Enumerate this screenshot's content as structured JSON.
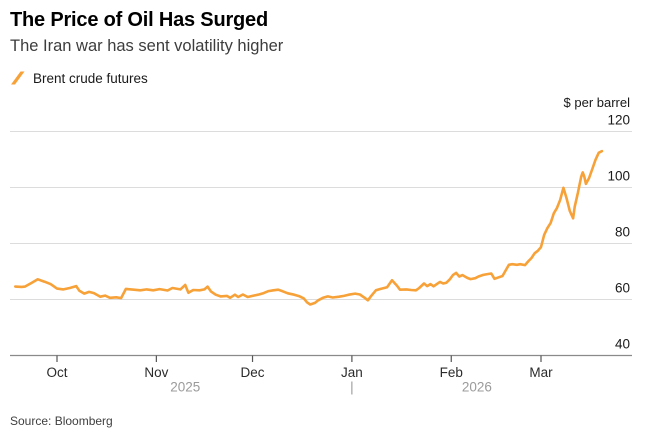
{
  "header": {
    "title": "The Price of Oil Has Surged",
    "subtitle": "The Iran war has sent volatility higher"
  },
  "legend": {
    "label": "Brent crude futures",
    "marker": "orange-slash"
  },
  "source": "Source: Bloomberg",
  "colors": {
    "series_orange": "#F7A139",
    "gridline": "#DCDCDC",
    "axis_line": "#8A8A8A",
    "tick_mark": "#555555",
    "tick_label": "#1a1a1a",
    "year_label": "#9b9b9b"
  },
  "chart_data": {
    "type": "line",
    "title": "The Price of Oil Has Surged",
    "subtitle": "The Iran war has sent volatility higher",
    "ylabel": "$ per barrel",
    "unit_label": "$ per barrel",
    "ylim": [
      40,
      120
    ],
    "yticks": [
      120,
      100,
      80,
      60,
      40
    ],
    "grid": "horizontal",
    "legend_position": "top-left",
    "x_axis": {
      "note": "day 0 = approx 2025-09-18, day 183 = approx 2026-03-20",
      "total_days": 183,
      "ticks": [
        {
          "label": "Oct",
          "day": 13
        },
        {
          "label": "Nov",
          "day": 44
        },
        {
          "label": "Dec",
          "day": 74
        },
        {
          "label": "Jan",
          "day": 105
        },
        {
          "label": "Feb",
          "day": 136
        },
        {
          "label": "Mar",
          "day": 164
        }
      ],
      "year_labels": [
        {
          "label": "2025",
          "day": 53
        },
        {
          "label": "2026",
          "day": 144
        }
      ],
      "year_divider": {
        "label": "|",
        "day": 105
      }
    },
    "series": [
      {
        "name": "Brent crude futures",
        "color": "#F7A139",
        "points": [
          [
            0,
            64.6
          ],
          [
            2,
            64.5
          ],
          [
            3,
            64.6
          ],
          [
            5,
            65.9
          ],
          [
            7,
            67.2
          ],
          [
            9,
            66.4
          ],
          [
            11,
            65.5
          ],
          [
            13,
            63.9
          ],
          [
            15,
            63.6
          ],
          [
            17,
            64.1
          ],
          [
            19,
            64.8
          ],
          [
            20,
            63.1
          ],
          [
            21.5,
            62.1
          ],
          [
            23,
            62.7
          ],
          [
            24.5,
            62.3
          ],
          [
            26.5,
            61.0
          ],
          [
            28,
            61.4
          ],
          [
            29.5,
            60.6
          ],
          [
            31.5,
            60.8
          ],
          [
            33,
            60.5
          ],
          [
            34.5,
            63.8
          ],
          [
            37,
            63.5
          ],
          [
            39,
            63.3
          ],
          [
            41,
            63.6
          ],
          [
            43,
            63.3
          ],
          [
            45,
            63.7
          ],
          [
            47.5,
            63.2
          ],
          [
            49,
            64.1
          ],
          [
            51.5,
            63.6
          ],
          [
            53,
            65.2
          ],
          [
            54,
            62.4
          ],
          [
            55.5,
            63.4
          ],
          [
            57.5,
            63.3
          ],
          [
            59,
            63.6
          ],
          [
            60,
            64.6
          ],
          [
            61,
            62.9
          ],
          [
            62.5,
            61.7
          ],
          [
            64,
            61.1
          ],
          [
            66,
            61.3
          ],
          [
            67,
            60.6
          ],
          [
            68.5,
            61.7
          ],
          [
            69.5,
            60.9
          ],
          [
            71,
            61.8
          ],
          [
            72.5,
            60.9
          ],
          [
            74,
            61.3
          ],
          [
            76,
            61.8
          ],
          [
            77.5,
            62.3
          ],
          [
            79,
            63.0
          ],
          [
            80.5,
            63.3
          ],
          [
            82,
            63.5
          ],
          [
            83.5,
            62.9
          ],
          [
            85,
            62.2
          ],
          [
            87,
            61.7
          ],
          [
            88.5,
            61.2
          ],
          [
            90,
            60.4
          ],
          [
            91,
            59.0
          ],
          [
            92,
            58.2
          ],
          [
            93.5,
            58.8
          ],
          [
            94.5,
            59.7
          ],
          [
            96,
            60.6
          ],
          [
            97.5,
            61.1
          ],
          [
            99,
            60.7
          ],
          [
            101,
            61.0
          ],
          [
            102.5,
            61.3
          ],
          [
            104,
            61.7
          ],
          [
            106,
            62.1
          ],
          [
            107.5,
            61.8
          ],
          [
            109,
            60.6
          ],
          [
            110,
            59.7
          ],
          [
            111,
            61.2
          ],
          [
            112.5,
            63.3
          ],
          [
            114,
            63.8
          ],
          [
            116,
            64.4
          ],
          [
            117.5,
            66.9
          ],
          [
            119,
            65.0
          ],
          [
            120,
            63.5
          ],
          [
            122,
            63.6
          ],
          [
            123.5,
            63.4
          ],
          [
            125,
            63.3
          ],
          [
            126,
            64.1
          ],
          [
            127.5,
            65.7
          ],
          [
            128.5,
            64.8
          ],
          [
            129.5,
            65.5
          ],
          [
            130.5,
            64.7
          ],
          [
            131.5,
            65.5
          ],
          [
            132.5,
            66.3
          ],
          [
            133.5,
            65.7
          ],
          [
            134.5,
            66.0
          ],
          [
            135.5,
            67.1
          ],
          [
            136.5,
            68.7
          ],
          [
            137.5,
            69.5
          ],
          [
            138.5,
            68.2
          ],
          [
            139.5,
            68.7
          ],
          [
            141,
            67.7
          ],
          [
            142,
            67.3
          ],
          [
            143.5,
            67.6
          ],
          [
            144.5,
            68.2
          ],
          [
            146,
            68.8
          ],
          [
            147.5,
            69.1
          ],
          [
            148.5,
            69.3
          ],
          [
            149.5,
            67.4
          ],
          [
            150.5,
            67.8
          ],
          [
            152,
            68.4
          ],
          [
            153,
            70.4
          ],
          [
            154,
            72.4
          ],
          [
            155,
            72.6
          ],
          [
            156.5,
            72.4
          ],
          [
            157.5,
            72.6
          ],
          [
            159,
            72.3
          ],
          [
            160,
            73.6
          ],
          [
            161,
            74.8
          ],
          [
            162,
            76.5
          ],
          [
            163,
            77.4
          ],
          [
            164,
            78.7
          ],
          [
            165,
            83.1
          ],
          [
            166,
            85.5
          ],
          [
            167,
            87.3
          ],
          [
            168,
            90.8
          ],
          [
            169,
            92.7
          ],
          [
            170,
            95.6
          ],
          [
            171,
            99.9
          ],
          [
            172,
            96.1
          ],
          [
            173,
            91.6
          ],
          [
            174,
            89.0
          ],
          [
            174.5,
            93.1
          ],
          [
            175.5,
            98.1
          ],
          [
            176.5,
            103.7
          ],
          [
            177,
            105.4
          ],
          [
            177.5,
            103.9
          ],
          [
            178,
            101.3
          ],
          [
            179,
            103.4
          ],
          [
            180,
            106.6
          ],
          [
            181,
            109.9
          ],
          [
            182,
            112.4
          ],
          [
            183,
            113.0
          ]
        ]
      }
    ]
  }
}
